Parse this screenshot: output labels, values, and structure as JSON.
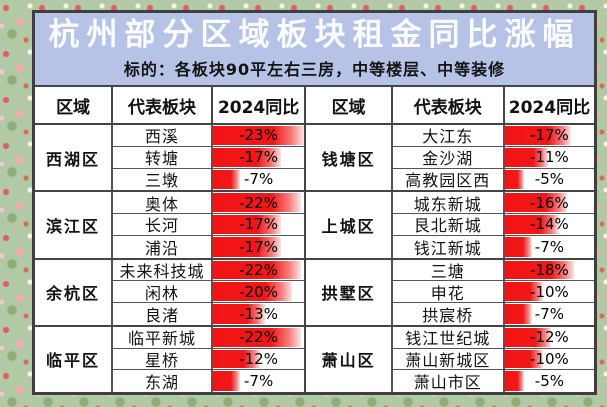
{
  "title": "杭州部分区域板块租金同比涨幅",
  "subtitle": "标的：各板块90平左右三房，中等楼层、中等装修",
  "columns": [
    "区域",
    "代表板块",
    "2024同比"
  ],
  "colors": {
    "title_bg": "#b6c3e7",
    "title_text": "#fbfcff",
    "bar_red": "#f21414",
    "frame_green": "#b2c9a6",
    "border_dark": "#454545"
  },
  "bar_scale_max": 23,
  "chart_data": {
    "type": "table",
    "title": "杭州部分区域板块租金同比涨幅",
    "subtitle": "标的：各板块90平左右三房，中等楼层、中等装修",
    "columns": [
      "区域",
      "代表板块",
      "2024同比"
    ],
    "value_unit": "percent_yoy",
    "tables": [
      {
        "side": "left",
        "groups": [
          {
            "district": "西湖区",
            "rows": [
              {
                "block": "西溪",
                "label": "-23%",
                "value": -23
              },
              {
                "block": "转塘",
                "label": "-17%",
                "value": -17
              },
              {
                "block": "三墩",
                "label": "-7%",
                "value": -7
              }
            ]
          },
          {
            "district": "滨江区",
            "rows": [
              {
                "block": "奥体",
                "label": "-22%",
                "value": -22
              },
              {
                "block": "长河",
                "label": "-17%",
                "value": -17
              },
              {
                "block": "浦沿",
                "label": "-17%",
                "value": -17
              }
            ]
          },
          {
            "district": "余杭区",
            "rows": [
              {
                "block": "未来科技城",
                "label": "-22%",
                "value": -22
              },
              {
                "block": "闲林",
                "label": "-20%",
                "value": -20
              },
              {
                "block": "良渚",
                "label": "-13%",
                "value": -13
              }
            ]
          },
          {
            "district": "临平区",
            "rows": [
              {
                "block": "临平新城",
                "label": "-22%",
                "value": -22
              },
              {
                "block": "星桥",
                "label": "-12%",
                "value": -12
              },
              {
                "block": "东湖",
                "label": "-7%",
                "value": -7
              }
            ]
          }
        ]
      },
      {
        "side": "right",
        "groups": [
          {
            "district": "钱塘区",
            "rows": [
              {
                "block": "大江东",
                "label": "-17%",
                "value": -17
              },
              {
                "block": "金沙湖",
                "label": "-11%",
                "value": -11
              },
              {
                "block": "高教园区西",
                "label": "-5%",
                "value": -5
              }
            ]
          },
          {
            "district": "上城区",
            "rows": [
              {
                "block": "城东新城",
                "label": "-16%",
                "value": -16
              },
              {
                "block": "艮北新城",
                "label": "-14%",
                "value": -14
              },
              {
                "block": "钱江新城",
                "label": "-7%",
                "value": -7
              }
            ]
          },
          {
            "district": "拱墅区",
            "rows": [
              {
                "block": "三塘",
                "label": "-18%",
                "value": -18
              },
              {
                "block": "申花",
                "label": "-10%",
                "value": -10
              },
              {
                "block": "拱宸桥",
                "label": "-7%",
                "value": -7
              }
            ]
          },
          {
            "district": "萧山区",
            "rows": [
              {
                "block": "钱江世纪城",
                "label": "-12%",
                "value": -12
              },
              {
                "block": "萧山新城区",
                "label": "-10%",
                "value": -10
              },
              {
                "block": "萧山市区",
                "label": "-5%",
                "value": -5
              }
            ]
          }
        ]
      }
    ]
  }
}
